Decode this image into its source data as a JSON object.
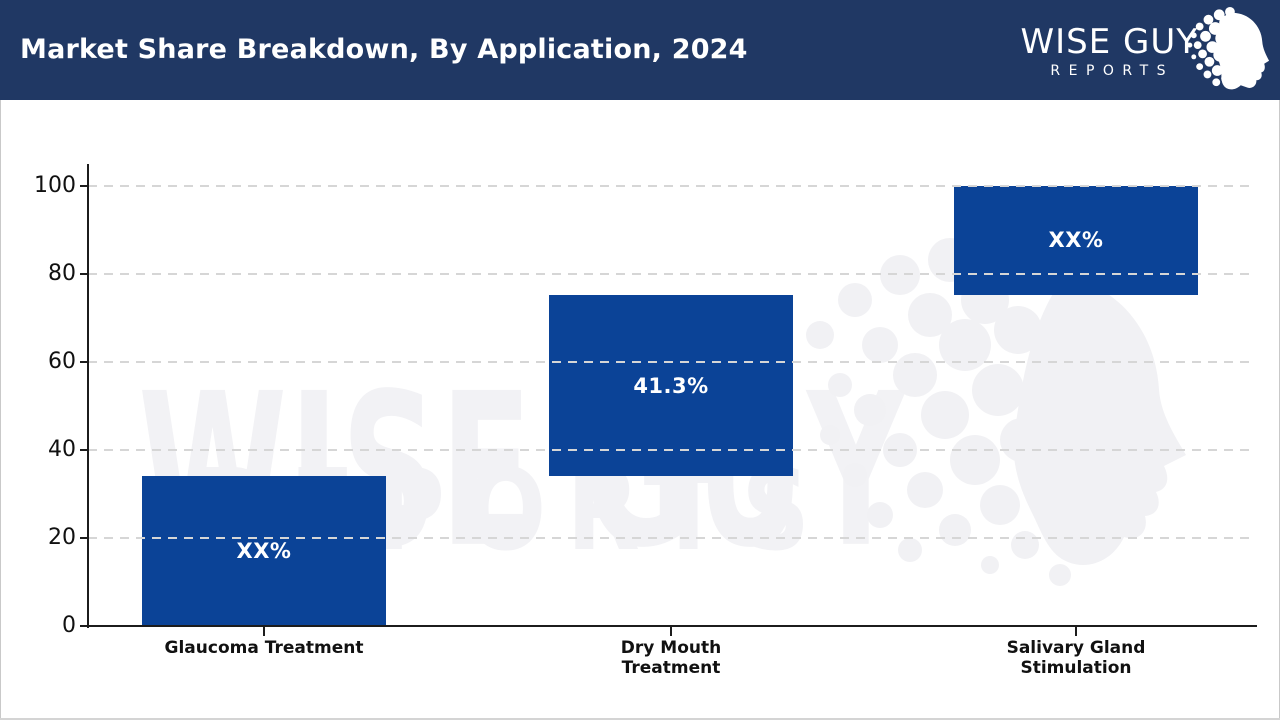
{
  "header": {
    "title": "Market Share Breakdown, By Application, 2024",
    "logo": {
      "line1": "WISE GUY",
      "line2": "REPORTS"
    }
  },
  "watermark": {
    "line1": "WISE GUY",
    "line2": "REPORTS"
  },
  "chart_data": {
    "type": "bar",
    "subtype": "floating-waterfall",
    "title": "Market Share Breakdown, By Application, 2024",
    "xlabel": "",
    "ylabel": "",
    "categories": [
      "Glaucoma Treatment",
      "Dry Mouth\nTreatment",
      "Salivary Gland\nStimulation"
    ],
    "segments": [
      {
        "category": "Glaucoma Treatment",
        "start": 0,
        "end": 34,
        "value_label": "XX%"
      },
      {
        "category": "Dry Mouth Treatment",
        "start": 34,
        "end": 75.3,
        "value_label": "41.3%"
      },
      {
        "category": "Salivary Gland Stimulation",
        "start": 75.3,
        "end": 100,
        "value_label": "XX%"
      }
    ],
    "yticks": [
      0,
      20,
      40,
      60,
      80,
      100
    ],
    "ylim": [
      0,
      105
    ],
    "grid": "horizontal-dashed",
    "legend": "none",
    "colors": {
      "bar": "#0b4397",
      "bar_label": "#ffffff",
      "axis": "#1c1c1c",
      "gridline": "#d6d6d6",
      "header_background": "#203864",
      "header_text": "#ffffff"
    }
  }
}
